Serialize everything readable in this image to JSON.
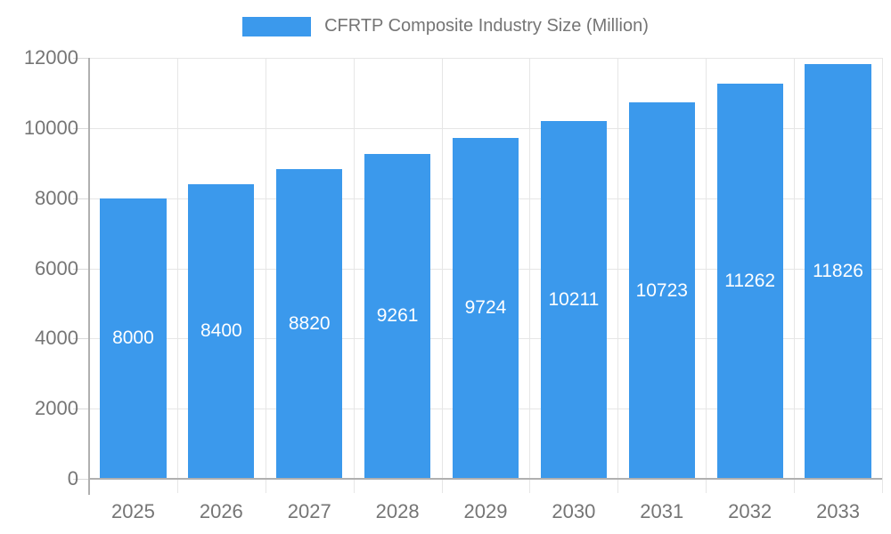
{
  "chart_data": {
    "type": "bar",
    "title": "CFRTP Composite Industry Size (Million)",
    "legend": [
      "CFRTP Composite Industry Size (Million)"
    ],
    "legend_position": "top-center",
    "categories": [
      "2025",
      "2026",
      "2027",
      "2028",
      "2029",
      "2030",
      "2031",
      "2032",
      "2033"
    ],
    "values": [
      8000,
      8400,
      8820,
      9261,
      9724,
      10211,
      10723,
      11262,
      11826
    ],
    "value_labels": [
      "8000",
      "8400",
      "8820",
      "9261",
      "9724",
      "10211",
      "10723",
      "11262",
      "11826"
    ],
    "xlabel": "",
    "ylabel": "",
    "ylim": [
      0,
      12000
    ],
    "yticks": [
      0,
      2000,
      4000,
      6000,
      8000,
      10000,
      12000
    ],
    "ytick_labels": [
      "0",
      "2000",
      "4000",
      "6000",
      "8000",
      "10000",
      "12000"
    ],
    "grid": true,
    "colors": {
      "bar": "#3B99EC",
      "bar_label": "#ffffff",
      "axis_text": "#757575",
      "legend_text": "#757575",
      "gridline": "#e6e6e6",
      "axis_line": "#b0b0b0",
      "background": "#ffffff"
    }
  }
}
